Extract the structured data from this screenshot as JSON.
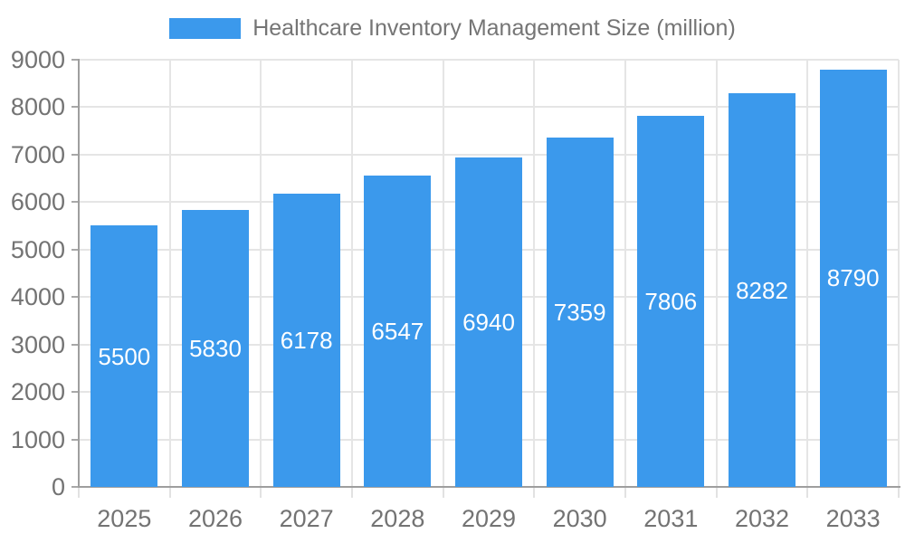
{
  "chart_data": {
    "type": "bar",
    "title": "Healthcare Inventory Management Size (million)",
    "legend_position": "top",
    "categories": [
      "2025",
      "2026",
      "2027",
      "2028",
      "2029",
      "2030",
      "2031",
      "2032",
      "2033"
    ],
    "series": [
      {
        "name": "Healthcare Inventory Management Size (million)",
        "values": [
          5500,
          5830,
          6178,
          6547,
          6940,
          7359,
          7806,
          8282,
          8790
        ]
      }
    ],
    "value_labels": [
      "5500",
      "5830",
      "6178",
      "6547",
      "6940",
      "7359",
      "7806",
      "8282",
      "8790"
    ],
    "xlabel": "",
    "ylabel": "",
    "ylim": [
      0,
      9000
    ],
    "ytick_step": 1000,
    "yticks": [
      "0",
      "1000",
      "2000",
      "3000",
      "4000",
      "5000",
      "6000",
      "7000",
      "8000",
      "9000"
    ],
    "grid": true,
    "colors": {
      "bar": "#3B99EC",
      "value_label": "#FFFFFF",
      "grid": "#E5E5E5",
      "x_tick_mark": "#E2E2E2",
      "y_tick_mark": "#A8A8A8",
      "axis": "#9E9E9E",
      "tick_label": "#737373",
      "title": "#757575",
      "background": "#FFFFFF"
    }
  }
}
